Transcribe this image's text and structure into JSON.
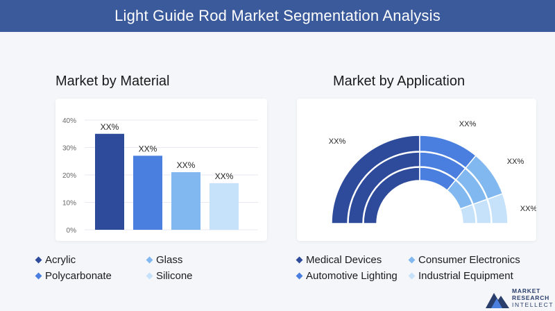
{
  "header": {
    "title": "Light Guide Rod Market Segmentation Analysis"
  },
  "left_title": "Market by Material",
  "right_title": "Market by Application",
  "colors": {
    "header_bg": "#3a5a9c",
    "series": [
      "#2e4a9a",
      "#4a7fe0",
      "#82b8f0",
      "#c6e2fa"
    ]
  },
  "chart_data": [
    {
      "type": "bar",
      "title": "Market by Material",
      "categories": [
        "Acrylic",
        "Glass",
        "Polycarbonate",
        "Silicone"
      ],
      "values": [
        35,
        27,
        21,
        17
      ],
      "data_labels": [
        "XX%",
        "XX%",
        "XX%",
        "XX%"
      ],
      "yticks": [
        "0%",
        "10%",
        "20%",
        "30%",
        "40%"
      ],
      "ylim": [
        0,
        40
      ],
      "grid": true,
      "legend": "bottom"
    },
    {
      "type": "pie",
      "subtype": "semi-donut",
      "title": "Market by Application",
      "categories": [
        "Medical Devices",
        "Consumer Electronics",
        "Automotive Lighting",
        "Industrial Equipment"
      ],
      "values": [
        50,
        22,
        17,
        11
      ],
      "data_labels": [
        "XX%",
        "XX%",
        "XX%",
        "XX%"
      ],
      "legend": "bottom"
    }
  ],
  "legend_left": [
    {
      "label": "Acrylic",
      "color": "#2e4a9a"
    },
    {
      "label": "Glass",
      "color": "#82b8f0"
    },
    {
      "label": "Polycarbonate",
      "color": "#4a7fe0"
    },
    {
      "label": "Silicone",
      "color": "#c6e2fa"
    }
  ],
  "legend_right": [
    {
      "label": "Medical Devices",
      "color": "#2e4a9a"
    },
    {
      "label": "Consumer Electronics",
      "color": "#82b8f0"
    },
    {
      "label": "Automotive Lighting",
      "color": "#4a7fe0"
    },
    {
      "label": "Industrial Equipment",
      "color": "#c6e2fa"
    }
  ],
  "logo": {
    "line1": "MARKET",
    "line2": "RESEARCH",
    "line3": "INTELLECT"
  }
}
